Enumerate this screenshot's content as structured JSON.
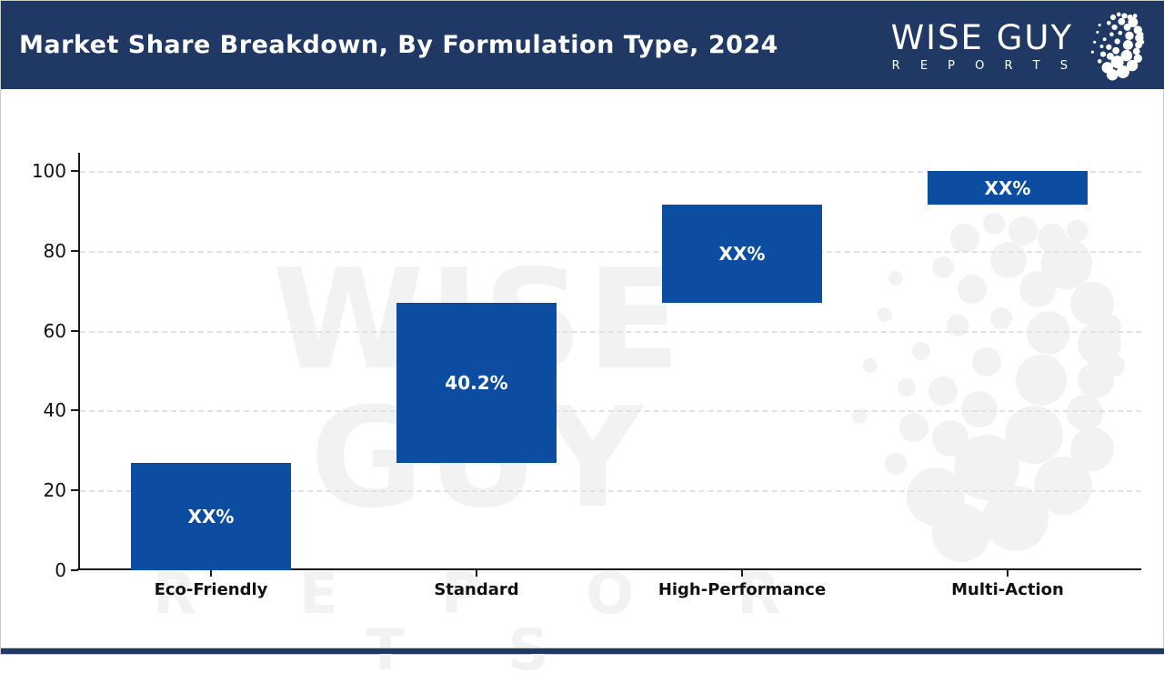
{
  "header": {
    "title": "Market Share Breakdown, By Formulation Type, 2024",
    "logo": {
      "line1": "WISE GUY",
      "line2": "R E P O R T S"
    }
  },
  "watermark": {
    "line1": "WISE GUY",
    "line2": "R E P O R T S"
  },
  "colors": {
    "header_bg": "#1f3864",
    "bar_fill": "#0c4da2",
    "bar_label": "#ffffff",
    "grid": "#e2e2e2",
    "axis": "#1a1a1a",
    "watermark": "#f2f2f2",
    "footer_bar": "#1f3864"
  },
  "chart_data": {
    "type": "bar",
    "subtype": "waterfall",
    "title": "Market Share Breakdown, By Formulation Type, 2024",
    "categories": [
      "Eco-Friendly",
      "Standard",
      "High-Performance",
      "Multi-Action"
    ],
    "values": [
      26.8,
      40.2,
      24.5,
      8.5
    ],
    "cumulative_start": [
      0,
      26.8,
      67.0,
      91.5
    ],
    "cumulative_end": [
      26.8,
      67.0,
      91.5,
      100
    ],
    "bar_labels": [
      "XX%",
      "40.2%",
      "XX%",
      "XX%"
    ],
    "xlabel": "",
    "ylabel": "",
    "ylim": [
      0,
      100
    ],
    "yticks": [
      0,
      20,
      40,
      60,
      80,
      100
    ],
    "grid": "horizontal-dashed",
    "legend": "none"
  }
}
